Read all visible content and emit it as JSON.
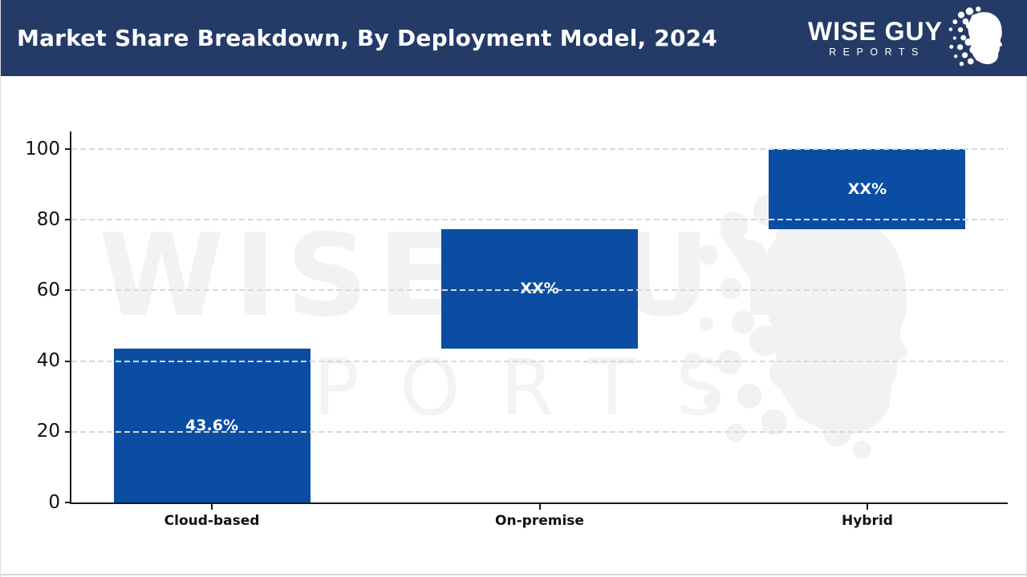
{
  "header": {
    "title": "Market Share Breakdown, By Deployment Model, 2024",
    "background": "#243b68",
    "logo": {
      "line1": "WISE GUY",
      "line2": "REPORTS"
    }
  },
  "watermark": {
    "line1": "WISE GUY",
    "line2": "REPORTS"
  },
  "chart_data": {
    "type": "bar",
    "subtype": "waterfall",
    "title": "Market Share Breakdown, By Deployment Model, 2024",
    "categories": [
      "Cloud-based",
      "On-premise",
      "Hybrid"
    ],
    "segments": [
      {
        "category": "Cloud-based",
        "start": 0,
        "end": 43.6,
        "label": "43.6%"
      },
      {
        "category": "On-premise",
        "start": 43.6,
        "end": 77.4,
        "label": "XX%"
      },
      {
        "category": "Hybrid",
        "start": 77.4,
        "end": 100,
        "label": "XX%"
      }
    ],
    "yticks": [
      0,
      20,
      40,
      60,
      80,
      100
    ],
    "ylim": [
      0,
      105
    ],
    "xlabel": "",
    "ylabel": "",
    "grid": true,
    "legend": false,
    "bar_color": "#0b4da2",
    "bar_label_color": "#ffffff",
    "grid_color": "#d9d9d9",
    "axis_color": "#1a1a1a",
    "tick_label_color": "#111111"
  }
}
